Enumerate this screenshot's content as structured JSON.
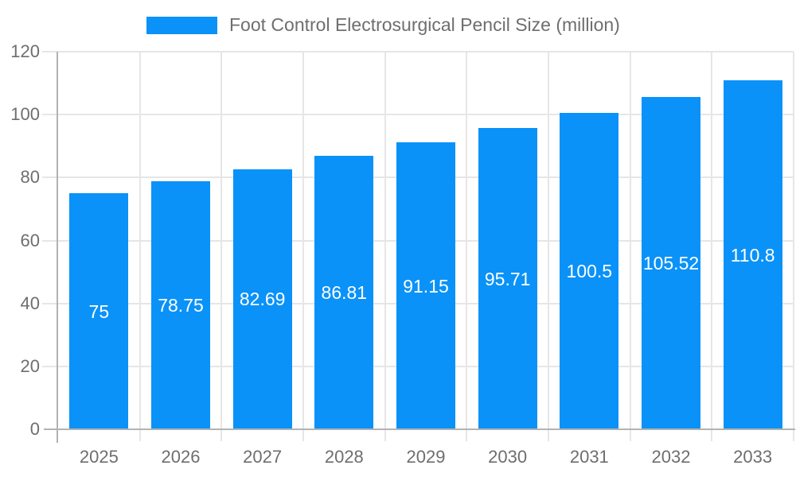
{
  "legend": {
    "label": "Foot Control Electrosurgical Pencil Size (million)"
  },
  "colors": {
    "bar": "#0A92F8",
    "axis_line": "#b3b3b3",
    "grid_line": "#e6e6e6",
    "axis_text": "#6e6e6e",
    "bar_label_text": "#ffffff",
    "background": "#ffffff"
  },
  "chart_data": {
    "type": "bar",
    "title": "Foot Control Electrosurgical Pencil Size (million)",
    "categories": [
      "2025",
      "2026",
      "2027",
      "2028",
      "2029",
      "2030",
      "2031",
      "2032",
      "2033"
    ],
    "values": [
      75,
      78.75,
      82.69,
      86.81,
      91.15,
      95.71,
      100.5,
      105.52,
      110.8
    ],
    "labels": [
      "75",
      "78.75",
      "82.69",
      "86.81",
      "91.15",
      "95.71",
      "100.5",
      "105.52",
      "110.8"
    ],
    "xlabel": "",
    "ylabel": "",
    "ylim": [
      0,
      120
    ],
    "yticks": [
      0,
      20,
      40,
      60,
      80,
      100,
      120
    ],
    "grid": "both",
    "legend_position": "top",
    "bar_label_position": "center"
  }
}
